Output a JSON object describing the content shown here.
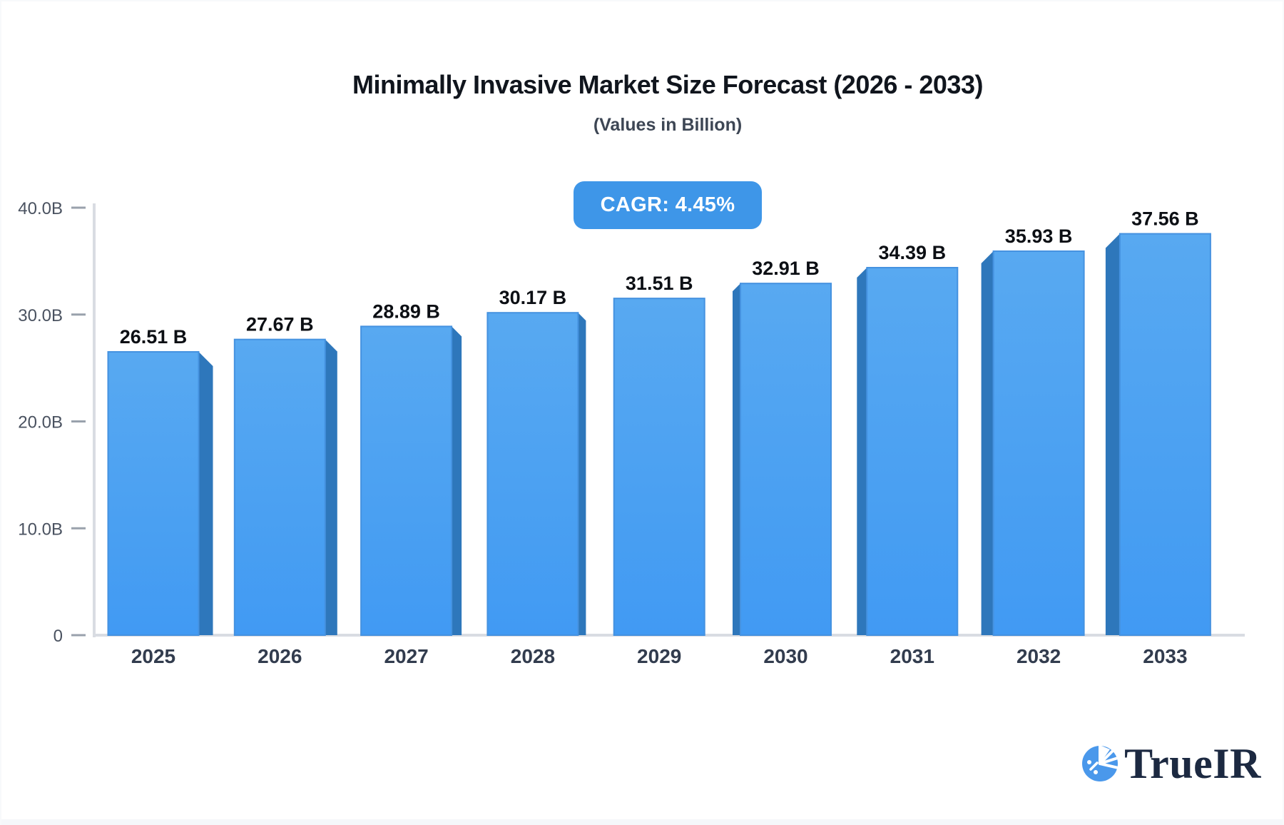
{
  "header": {
    "title": "Minimally Invasive Market Size Forecast (2026 - 2033)",
    "subtitle": "(Values in Billion)",
    "cagr_badge": "CAGR: 4.45%"
  },
  "chart_data": {
    "type": "bar",
    "title": "Minimally Invasive Market Size Forecast (2026 - 2033)",
    "subtitle": "(Values in Billion)",
    "categories": [
      "2025",
      "2026",
      "2027",
      "2028",
      "2029",
      "2030",
      "2031",
      "2032",
      "2033"
    ],
    "values": [
      26.51,
      27.67,
      28.89,
      30.17,
      31.51,
      32.91,
      34.39,
      35.93,
      37.56
    ],
    "value_labels": [
      "26.51 B",
      "27.67 B",
      "28.89 B",
      "30.17 B",
      "31.51 B",
      "32.91 B",
      "34.39 B",
      "35.93 B",
      "37.56 B"
    ],
    "cagr": "4.45%",
    "ylim": [
      0,
      40
    ],
    "y_ticks": [
      {
        "value": 0,
        "label": "0"
      },
      {
        "value": 10,
        "label": "10.0B"
      },
      {
        "value": 20,
        "label": "20.0B"
      },
      {
        "value": 30,
        "label": "30.0B"
      },
      {
        "value": 40,
        "label": "40.0B"
      }
    ],
    "grid": false,
    "legend": "none",
    "bar_style": "3d-extruded, vanishing point at center bar"
  },
  "colors": {
    "bar_face_top": "#58a9f1",
    "bar_face_bottom": "#419af3",
    "bar_face_edge": "#4592e0",
    "bar_side": "#2e77bb",
    "badge_background": "#3e96e8",
    "badge_text": "#ffffff",
    "axis_line": "#d9dce2",
    "tick_mark": "#99a1ac",
    "y_label": "#4a5260",
    "x_label": "#323c4e",
    "value_label": "#0c0f14",
    "logo_icon": "#4a98eb",
    "logo_text": "#1c2941"
  },
  "logo": {
    "brand": "TrueIR",
    "icon": "pie-chart-icon"
  }
}
